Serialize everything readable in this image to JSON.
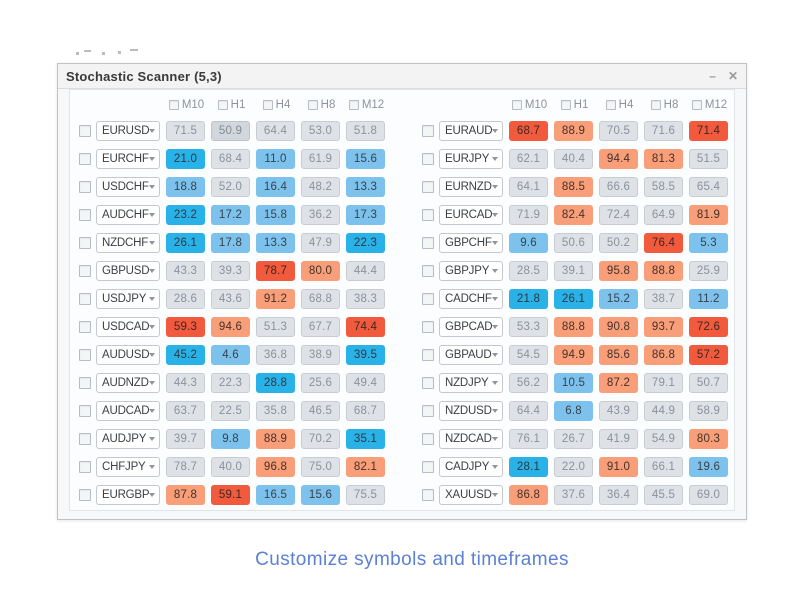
{
  "window": {
    "title": "Stochastic Scanner (5,3)",
    "controls": {
      "minimize": "–",
      "close": "✕"
    }
  },
  "timeframes": [
    "M10",
    "H1",
    "H4",
    "H8",
    "M12"
  ],
  "colors": {
    "g": {
      "bg": "#dee2e7",
      "text": "#8b919b",
      "border": "#c8cdd4"
    },
    "g2": {
      "bg": "#d2d7dd",
      "text": "#848a94",
      "border": "#bfc4cb"
    },
    "c": {
      "bg": "#29b2e8",
      "text": "#2e3840",
      "border": "#29b2e8"
    },
    "b": {
      "bg": "#7cc2ec",
      "text": "#39424b",
      "border": "#7cc2ec"
    },
    "r": {
      "bg": "#f25a3d",
      "text": "#3e2721",
      "border": "#f25a3d"
    },
    "o": {
      "bg": "#f89e78",
      "text": "#45312a",
      "border": "#f89e78"
    }
  },
  "left_table": {
    "rows": [
      {
        "symbol": "EURUSD",
        "cells": [
          {
            "v": "71.5",
            "c": "g"
          },
          {
            "v": "50.9",
            "c": "g2"
          },
          {
            "v": "64.4",
            "c": "g"
          },
          {
            "v": "53.0",
            "c": "g"
          },
          {
            "v": "51.8",
            "c": "g"
          }
        ]
      },
      {
        "symbol": "EURCHF",
        "cells": [
          {
            "v": "21.0",
            "c": "c"
          },
          {
            "v": "68.4",
            "c": "g"
          },
          {
            "v": "11.0",
            "c": "b"
          },
          {
            "v": "61.9",
            "c": "g"
          },
          {
            "v": "15.6",
            "c": "b"
          }
        ]
      },
      {
        "symbol": "USDCHF",
        "cells": [
          {
            "v": "18.8",
            "c": "b"
          },
          {
            "v": "52.0",
            "c": "g"
          },
          {
            "v": "16.4",
            "c": "b"
          },
          {
            "v": "48.2",
            "c": "g"
          },
          {
            "v": "13.3",
            "c": "b"
          }
        ]
      },
      {
        "symbol": "AUDCHF",
        "cells": [
          {
            "v": "23.2",
            "c": "c"
          },
          {
            "v": "17.2",
            "c": "b"
          },
          {
            "v": "15.8",
            "c": "b"
          },
          {
            "v": "36.2",
            "c": "g"
          },
          {
            "v": "17.3",
            "c": "b"
          }
        ]
      },
      {
        "symbol": "NZDCHF",
        "cells": [
          {
            "v": "26.1",
            "c": "c"
          },
          {
            "v": "17.8",
            "c": "b"
          },
          {
            "v": "13.3",
            "c": "b"
          },
          {
            "v": "47.9",
            "c": "g"
          },
          {
            "v": "22.3",
            "c": "c"
          }
        ]
      },
      {
        "symbol": "GBPUSD",
        "cells": [
          {
            "v": "43.3",
            "c": "g"
          },
          {
            "v": "39.3",
            "c": "g"
          },
          {
            "v": "78.7",
            "c": "r"
          },
          {
            "v": "80.0",
            "c": "o"
          },
          {
            "v": "44.4",
            "c": "g"
          }
        ]
      },
      {
        "symbol": "USDJPY",
        "cells": [
          {
            "v": "28.6",
            "c": "g"
          },
          {
            "v": "43.6",
            "c": "g"
          },
          {
            "v": "91.2",
            "c": "o"
          },
          {
            "v": "68.8",
            "c": "g"
          },
          {
            "v": "38.3",
            "c": "g"
          }
        ]
      },
      {
        "symbol": "USDCAD",
        "cells": [
          {
            "v": "59.3",
            "c": "r"
          },
          {
            "v": "94.6",
            "c": "o"
          },
          {
            "v": "51.3",
            "c": "g"
          },
          {
            "v": "67.7",
            "c": "g"
          },
          {
            "v": "74.4",
            "c": "r"
          }
        ]
      },
      {
        "symbol": "AUDUSD",
        "cells": [
          {
            "v": "45.2",
            "c": "c"
          },
          {
            "v": "4.6",
            "c": "b"
          },
          {
            "v": "36.8",
            "c": "g"
          },
          {
            "v": "38.9",
            "c": "g"
          },
          {
            "v": "39.5",
            "c": "c"
          }
        ]
      },
      {
        "symbol": "AUDNZD",
        "cells": [
          {
            "v": "44.3",
            "c": "g"
          },
          {
            "v": "22.3",
            "c": "g"
          },
          {
            "v": "28.8",
            "c": "c"
          },
          {
            "v": "25.6",
            "c": "g"
          },
          {
            "v": "49.4",
            "c": "g"
          }
        ]
      },
      {
        "symbol": "AUDCAD",
        "cells": [
          {
            "v": "63.7",
            "c": "g"
          },
          {
            "v": "22.5",
            "c": "g"
          },
          {
            "v": "35.8",
            "c": "g"
          },
          {
            "v": "46.5",
            "c": "g"
          },
          {
            "v": "68.7",
            "c": "g"
          }
        ]
      },
      {
        "symbol": "AUDJPY",
        "cells": [
          {
            "v": "39.7",
            "c": "g"
          },
          {
            "v": "9.8",
            "c": "b"
          },
          {
            "v": "88.9",
            "c": "o"
          },
          {
            "v": "70.2",
            "c": "g"
          },
          {
            "v": "35.1",
            "c": "c"
          }
        ]
      },
      {
        "symbol": "CHFJPY",
        "cells": [
          {
            "v": "78.7",
            "c": "g"
          },
          {
            "v": "40.0",
            "c": "g"
          },
          {
            "v": "96.8",
            "c": "o"
          },
          {
            "v": "75.0",
            "c": "g"
          },
          {
            "v": "82.1",
            "c": "o"
          }
        ]
      },
      {
        "symbol": "EURGBP",
        "cells": [
          {
            "v": "87.8",
            "c": "o"
          },
          {
            "v": "59.1",
            "c": "r"
          },
          {
            "v": "16.5",
            "c": "b"
          },
          {
            "v": "15.6",
            "c": "b"
          },
          {
            "v": "75.5",
            "c": "g"
          }
        ]
      }
    ]
  },
  "right_table": {
    "rows": [
      {
        "symbol": "EURAUD",
        "cells": [
          {
            "v": "68.7",
            "c": "r"
          },
          {
            "v": "88.9",
            "c": "o"
          },
          {
            "v": "70.5",
            "c": "g"
          },
          {
            "v": "71.6",
            "c": "g"
          },
          {
            "v": "71.4",
            "c": "r"
          }
        ]
      },
      {
        "symbol": "EURJPY",
        "cells": [
          {
            "v": "62.1",
            "c": "g"
          },
          {
            "v": "40.4",
            "c": "g"
          },
          {
            "v": "94.4",
            "c": "o"
          },
          {
            "v": "81.3",
            "c": "o"
          },
          {
            "v": "51.5",
            "c": "g"
          }
        ]
      },
      {
        "symbol": "EURNZD",
        "cells": [
          {
            "v": "64.1",
            "c": "g"
          },
          {
            "v": "88.5",
            "c": "o"
          },
          {
            "v": "66.6",
            "c": "g"
          },
          {
            "v": "58.5",
            "c": "g"
          },
          {
            "v": "65.4",
            "c": "g"
          }
        ]
      },
      {
        "symbol": "EURCAD",
        "cells": [
          {
            "v": "71.9",
            "c": "g"
          },
          {
            "v": "82.4",
            "c": "o"
          },
          {
            "v": "72.4",
            "c": "g"
          },
          {
            "v": "64.9",
            "c": "g"
          },
          {
            "v": "81.9",
            "c": "o"
          }
        ]
      },
      {
        "symbol": "GBPCHF",
        "cells": [
          {
            "v": "9.6",
            "c": "b"
          },
          {
            "v": "50.6",
            "c": "g"
          },
          {
            "v": "50.2",
            "c": "g"
          },
          {
            "v": "76.4",
            "c": "r"
          },
          {
            "v": "5.3",
            "c": "b"
          }
        ]
      },
      {
        "symbol": "GBPJPY",
        "cells": [
          {
            "v": "28.5",
            "c": "g"
          },
          {
            "v": "39.1",
            "c": "g"
          },
          {
            "v": "95.8",
            "c": "o"
          },
          {
            "v": "88.8",
            "c": "o"
          },
          {
            "v": "25.9",
            "c": "g"
          }
        ]
      },
      {
        "symbol": "CADCHF",
        "cells": [
          {
            "v": "21.8",
            "c": "c"
          },
          {
            "v": "26.1",
            "c": "c"
          },
          {
            "v": "15.2",
            "c": "b"
          },
          {
            "v": "38.7",
            "c": "g"
          },
          {
            "v": "11.2",
            "c": "b"
          }
        ]
      },
      {
        "symbol": "GBPCAD",
        "cells": [
          {
            "v": "53.3",
            "c": "g"
          },
          {
            "v": "88.8",
            "c": "o"
          },
          {
            "v": "90.8",
            "c": "o"
          },
          {
            "v": "93.7",
            "c": "o"
          },
          {
            "v": "72.6",
            "c": "r"
          }
        ]
      },
      {
        "symbol": "GBPAUD",
        "cells": [
          {
            "v": "54.5",
            "c": "g"
          },
          {
            "v": "94.9",
            "c": "o"
          },
          {
            "v": "85.6",
            "c": "o"
          },
          {
            "v": "86.8",
            "c": "o"
          },
          {
            "v": "57.2",
            "c": "r"
          }
        ]
      },
      {
        "symbol": "NZDJPY",
        "cells": [
          {
            "v": "56.2",
            "c": "g"
          },
          {
            "v": "10.5",
            "c": "b"
          },
          {
            "v": "87.2",
            "c": "o"
          },
          {
            "v": "79.1",
            "c": "g"
          },
          {
            "v": "50.7",
            "c": "g"
          }
        ]
      },
      {
        "symbol": "NZDUSD",
        "cells": [
          {
            "v": "64.4",
            "c": "g"
          },
          {
            "v": "6.8",
            "c": "b"
          },
          {
            "v": "43.9",
            "c": "g"
          },
          {
            "v": "44.9",
            "c": "g"
          },
          {
            "v": "58.9",
            "c": "g"
          }
        ]
      },
      {
        "symbol": "NZDCAD",
        "cells": [
          {
            "v": "76.1",
            "c": "g"
          },
          {
            "v": "26.7",
            "c": "g"
          },
          {
            "v": "41.9",
            "c": "g"
          },
          {
            "v": "54.9",
            "c": "g"
          },
          {
            "v": "80.3",
            "c": "o"
          }
        ]
      },
      {
        "symbol": "CADJPY",
        "cells": [
          {
            "v": "28.1",
            "c": "c"
          },
          {
            "v": "22.0",
            "c": "g"
          },
          {
            "v": "91.0",
            "c": "o"
          },
          {
            "v": "66.1",
            "c": "g"
          },
          {
            "v": "19.6",
            "c": "b"
          }
        ]
      },
      {
        "symbol": "XAUUSD",
        "cells": [
          {
            "v": "86.8",
            "c": "o"
          },
          {
            "v": "37.6",
            "c": "g"
          },
          {
            "v": "36.4",
            "c": "g"
          },
          {
            "v": "45.5",
            "c": "g"
          },
          {
            "v": "69.0",
            "c": "g"
          }
        ]
      }
    ]
  },
  "caption": "Customize symbols and timeframes"
}
